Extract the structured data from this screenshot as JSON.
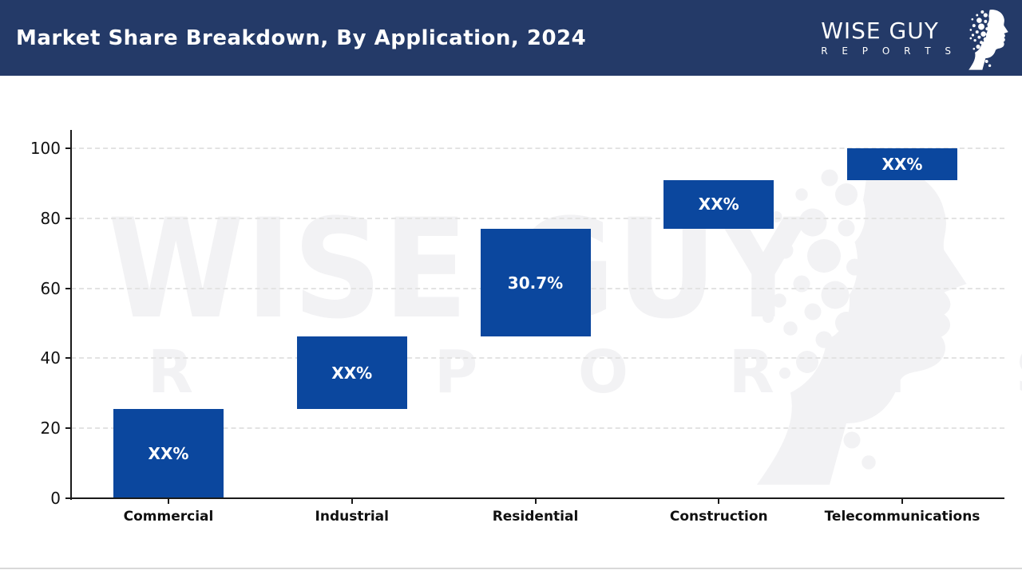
{
  "header": {
    "title": "Market Share Breakdown, By Application, 2024",
    "bg_color": "#243a68",
    "logo": {
      "line1": "WISE GUY",
      "line2": "R E P O R T S"
    }
  },
  "watermark": {
    "line1": "WISE GUY",
    "line2": "R E P O R T S"
  },
  "chart_data": {
    "type": "bar",
    "subtype": "waterfall-floating-bars",
    "title": "Market Share Breakdown, By Application, 2024",
    "categories": [
      "Commercial",
      "Industrial",
      "Residential",
      "Construction",
      "Telecommunications"
    ],
    "segments": [
      {
        "category": "Commercial",
        "start": 0,
        "end": 25.5,
        "label": "XX%"
      },
      {
        "category": "Industrial",
        "start": 25.5,
        "end": 46.2,
        "label": "XX%"
      },
      {
        "category": "Residential",
        "start": 46.2,
        "end": 76.9,
        "label": "30.7%"
      },
      {
        "category": "Construction",
        "start": 76.9,
        "end": 91.0,
        "label": "XX%"
      },
      {
        "category": "Telecommunications",
        "start": 91.0,
        "end": 100.0,
        "label": "XX%"
      }
    ],
    "y_ticks": [
      0,
      20,
      40,
      60,
      80,
      100
    ],
    "ylim": [
      0,
      105
    ],
    "xlabel": "",
    "ylabel": "",
    "grid": "horizontal-dashed",
    "legend": false,
    "bar_color": "#0b479e",
    "axis_color": "#1a1a1a",
    "grid_color": "#e3e3e3",
    "value_label_color": "#ffffff"
  }
}
